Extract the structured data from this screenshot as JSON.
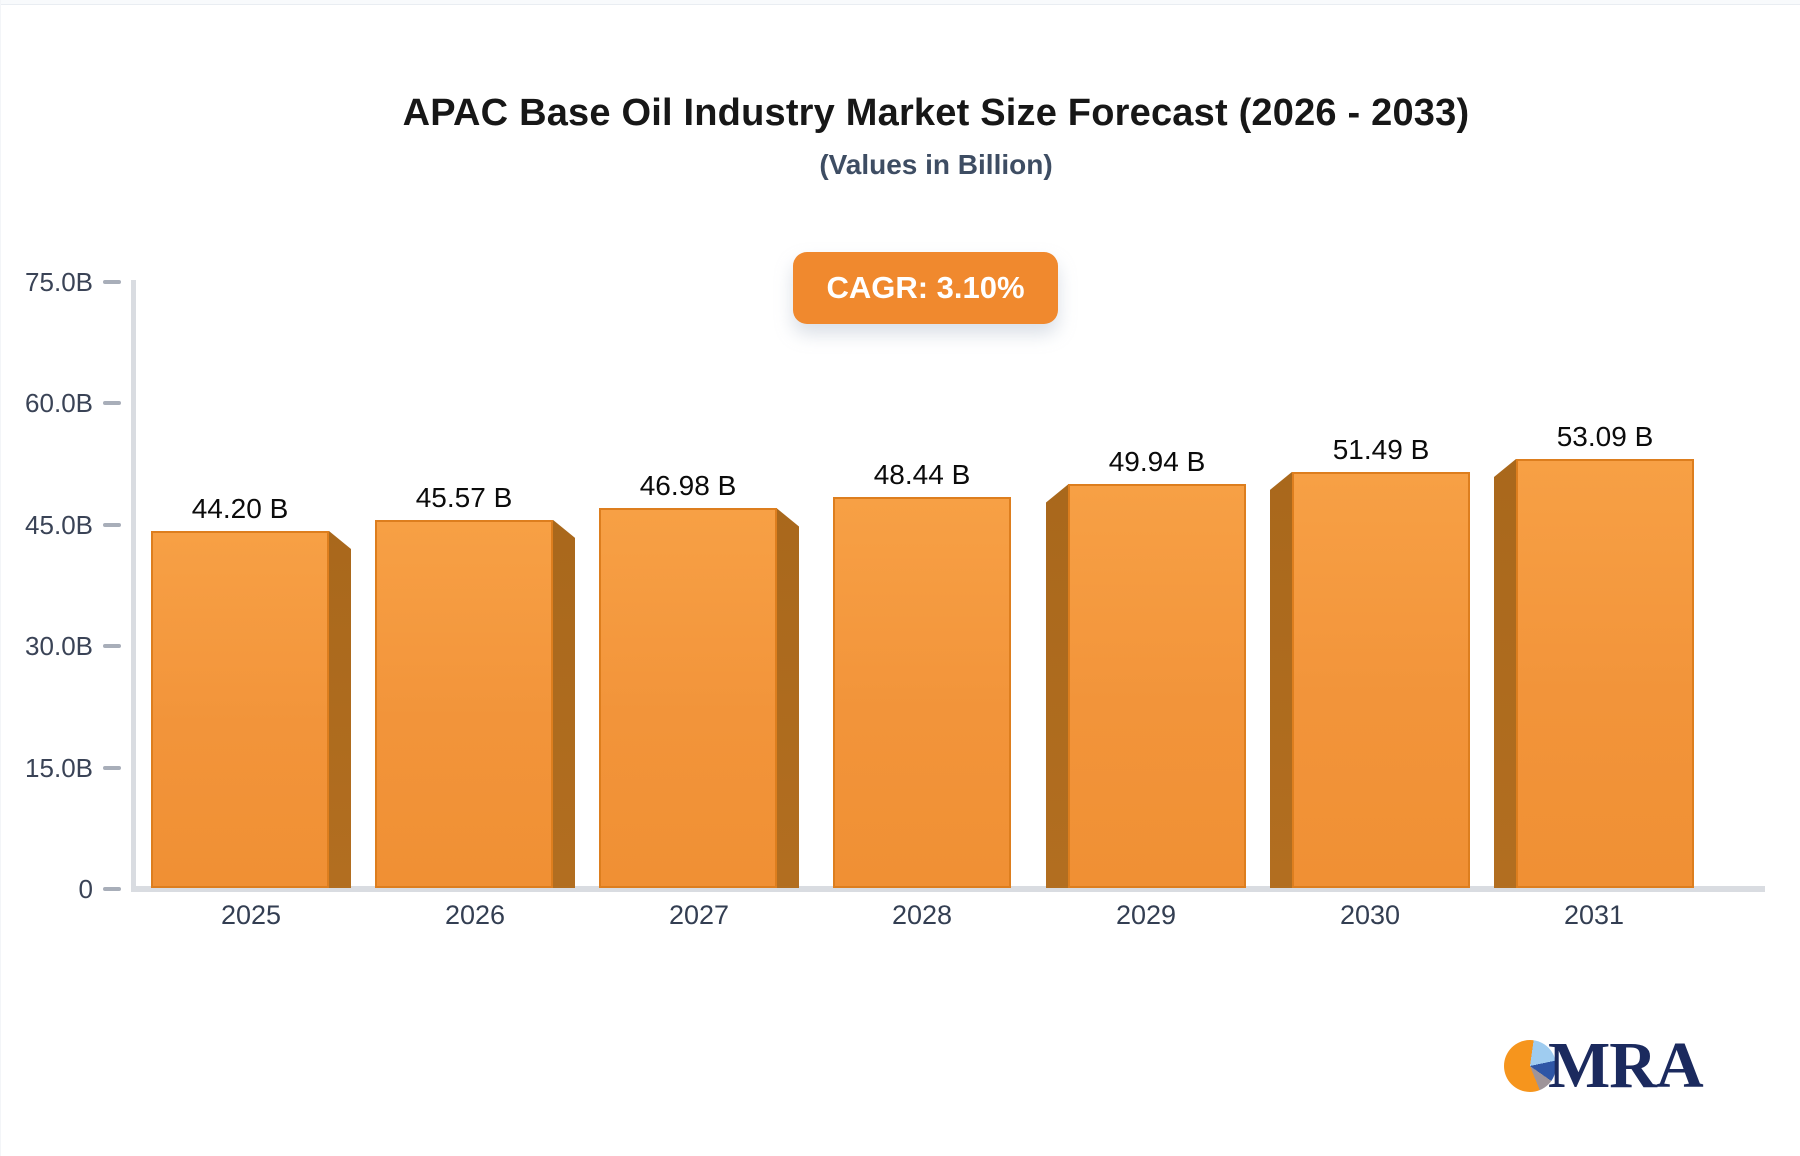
{
  "header": {
    "title": "APAC Base Oil Industry Market Size Forecast (2026 - 2033)",
    "subtitle": "(Values in Billion)"
  },
  "badge": {
    "label": "CAGR: 3.10%"
  },
  "chart_data": {
    "type": "bar",
    "title": "APAC Base Oil Industry Market Size Forecast (2026 - 2033)",
    "subtitle": "(Values in Billion)",
    "cagr_annotation": "CAGR: 3.10%",
    "categories": [
      "2025",
      "2026",
      "2027",
      "2028",
      "2029",
      "2030",
      "2031"
    ],
    "values": [
      44.2,
      45.57,
      46.98,
      48.44,
      49.94,
      51.49,
      53.09
    ],
    "value_labels": [
      "44.20 B",
      "45.57 B",
      "46.98 B",
      "48.44 B",
      "49.94 B",
      "51.49 B",
      "53.09 B"
    ],
    "unit": "Billion",
    "xlabel": "",
    "ylabel": "",
    "ylim": [
      0,
      75
    ],
    "y_tick_labels": [
      "0",
      "15.0B",
      "30.0B",
      "45.0B",
      "60.0B",
      "75.0B"
    ],
    "grid": "off",
    "legend": "none",
    "style": "3d-bars",
    "bar_color": "#F2943A",
    "bar_side_color": "#AC6C1E"
  },
  "y_axis": {
    "ticks": [
      {
        "label": "75.0B",
        "value": 75
      },
      {
        "label": "60.0B",
        "value": 60
      },
      {
        "label": "45.0B",
        "value": 45
      },
      {
        "label": "30.0B",
        "value": 30
      },
      {
        "label": "15.0B",
        "value": 15
      },
      {
        "label": "0",
        "value": 0
      }
    ]
  },
  "bars": [
    {
      "category": "2025",
      "value": 44.2,
      "label": "44.20 B",
      "side": "right"
    },
    {
      "category": "2026",
      "value": 45.57,
      "label": "45.57 B",
      "side": "right"
    },
    {
      "category": "2027",
      "value": 46.98,
      "label": "46.98 B",
      "side": "right"
    },
    {
      "category": "2028",
      "value": 48.44,
      "label": "48.44 B",
      "side": "none"
    },
    {
      "category": "2029",
      "value": 49.94,
      "label": "49.94 B",
      "side": "left"
    },
    {
      "category": "2030",
      "value": 51.49,
      "label": "51.49 B",
      "side": "left"
    },
    {
      "category": "2031",
      "value": 53.09,
      "label": "53.09 B",
      "side": "left"
    }
  ],
  "logo": {
    "text": "MRA"
  },
  "colors": {
    "bar_face": "#F2943A",
    "bar_face_border": "#DD7E1E",
    "bar_side": "#AC6C1E",
    "badge_bg": "#F0892E",
    "badge_text": "#FFFFFF",
    "title_text": "#171717",
    "subtitle_text": "#3E4D63",
    "axis_line": "#D9DCE1",
    "tick_text": "#3A4356",
    "logo_navy": "#1B2A5E",
    "logo_orange": "#F6951D",
    "logo_light_blue": "#9FCCF0",
    "logo_blue": "#2E56A6"
  }
}
